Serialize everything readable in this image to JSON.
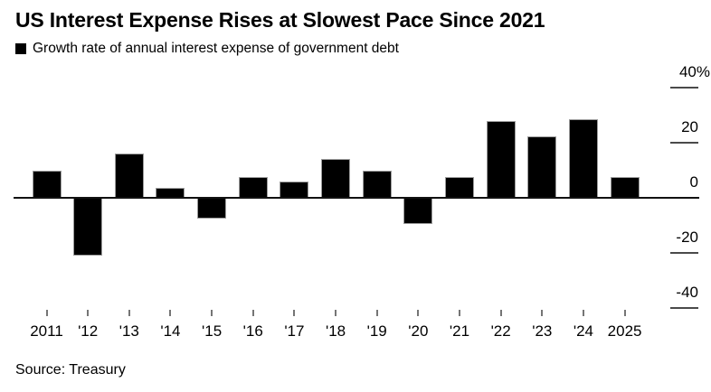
{
  "page": {
    "title": "US Interest Expense Rises at Slowest Pace Since 2021",
    "legend_label": "Growth rate of annual interest expense of government debt",
    "source": "Source: Treasury"
  },
  "chart_data": {
    "type": "bar",
    "title": "US Interest Expense Rises at Slowest Pace Since 2021",
    "legend": [
      "Growth rate of annual interest expense of government debt"
    ],
    "legend_position": "top-left",
    "categories": [
      "2011",
      "'12",
      "'13",
      "'14",
      "'15",
      "'16",
      "'17",
      "'18",
      "'19",
      "'20",
      "'21",
      "'22",
      "'23",
      "'24",
      "2025"
    ],
    "values": [
      10,
      -21,
      16,
      3.5,
      -7.5,
      7.5,
      6,
      14,
      10,
      -9.5,
      7.5,
      28,
      22.5,
      28.5,
      7.5
    ],
    "unit": "%",
    "xlabel": "",
    "ylabel": "",
    "ylim": [
      -45,
      45
    ],
    "y_ticks": [
      {
        "value": 40,
        "label": "40%"
      },
      {
        "value": 20,
        "label": "20"
      },
      {
        "value": 0,
        "label": "0"
      },
      {
        "value": -20,
        "label": "-20"
      },
      {
        "value": -40,
        "label": "-40"
      }
    ],
    "grid": "off",
    "axis_side": "right",
    "colors": {
      "bar": "#000000",
      "bar_outline": "#9c9c9c",
      "zero_line": "#111111",
      "y_tick": "#4a4a4a",
      "x_tick": "#757575",
      "text": "#000000"
    },
    "source": "Source: Treasury"
  }
}
